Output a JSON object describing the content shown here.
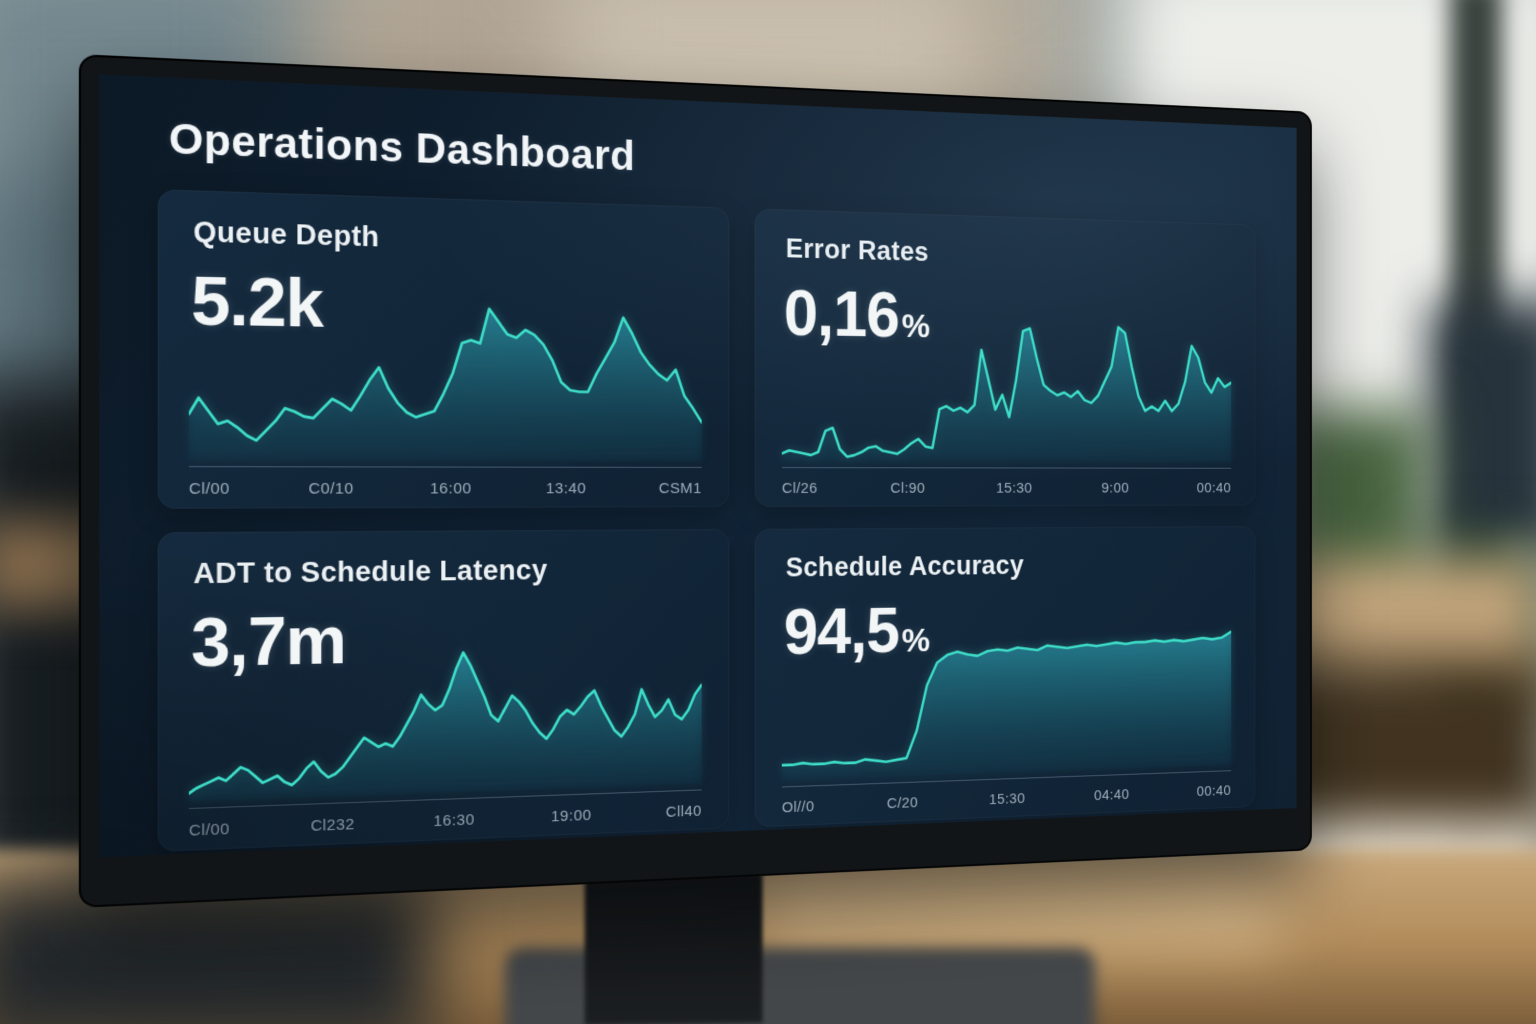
{
  "header": {
    "title": "Operations Dashboard"
  },
  "colors": {
    "line": "#3edec9",
    "area_top": "#2a93a8",
    "area_bottom": "#0e3a52",
    "screen_bg": "#102234",
    "card_bg": "#122639",
    "text_primary": "#f3f6f7",
    "text_axis": "#aebecb"
  },
  "chart_data": [
    {
      "type": "area",
      "title": "Queue Depth",
      "value": "5.2k",
      "value_suffix": "",
      "x_labels": [
        "Cl/00",
        "C0/10",
        "16:00",
        "13:40",
        "CSM1"
      ],
      "y_scale": "normalized-0-100-estimated",
      "ylim": [
        0,
        100
      ],
      "values": [
        28,
        38,
        30,
        22,
        24,
        20,
        15,
        12,
        18,
        24,
        32,
        30,
        27,
        26,
        32,
        38,
        35,
        31,
        40,
        50,
        58,
        45,
        36,
        30,
        27,
        29,
        31,
        42,
        55,
        74,
        76,
        74,
        96,
        88,
        80,
        78,
        83,
        80,
        74,
        64,
        50,
        45,
        44,
        44,
        56,
        66,
        76,
        92,
        82,
        70,
        62,
        56,
        52,
        59,
        42,
        34,
        25
      ]
    },
    {
      "type": "area",
      "title": "Error Rates",
      "value": "0,16",
      "value_suffix": "%",
      "x_labels": [
        "Cl/26",
        "Cl:90",
        "15:30",
        "9:00",
        "00:40"
      ],
      "y_scale": "normalized-0-100-estimated",
      "ylim": [
        0,
        100
      ],
      "values": [
        5,
        7,
        6,
        5,
        4,
        6,
        20,
        22,
        8,
        3,
        4,
        6,
        9,
        10,
        7,
        6,
        5,
        8,
        12,
        15,
        10,
        9,
        35,
        37,
        34,
        36,
        33,
        38,
        75,
        55,
        35,
        45,
        30,
        55,
        88,
        90,
        70,
        52,
        48,
        45,
        47,
        44,
        48,
        42,
        40,
        45,
        55,
        65,
        92,
        88,
        65,
        45,
        35,
        38,
        35,
        42,
        35,
        40,
        55,
        80,
        72,
        55,
        48,
        58,
        52,
        55
      ]
    },
    {
      "type": "area",
      "title": "ADT to Schedule Latency",
      "value": "3,7m",
      "value_suffix": "",
      "x_labels": [
        "Cl/00",
        "Cl232",
        "16:30",
        "19:00",
        "Cll40"
      ],
      "y_scale": "normalized-0-100-estimated",
      "ylim": [
        0,
        100
      ],
      "values": [
        5,
        8,
        10,
        12,
        14,
        12,
        16,
        20,
        18,
        14,
        10,
        12,
        14,
        10,
        8,
        12,
        18,
        22,
        16,
        12,
        14,
        18,
        24,
        30,
        36,
        33,
        30,
        32,
        30,
        36,
        44,
        52,
        62,
        56,
        52,
        55,
        65,
        78,
        88,
        80,
        70,
        60,
        48,
        44,
        52,
        60,
        56,
        50,
        42,
        36,
        32,
        38,
        46,
        50,
        47,
        52,
        58,
        62,
        52,
        44,
        36,
        32,
        38,
        46,
        62,
        52,
        44,
        48,
        55,
        45,
        42,
        48,
        58,
        64
      ]
    },
    {
      "type": "area",
      "title": "Schedule Accuracy",
      "value": "94,5",
      "value_suffix": "%",
      "x_labels": [
        "Ol//0",
        "C/20",
        "15:30",
        "04:40",
        "00:40"
      ],
      "y_scale": "normalized-0-100-estimated",
      "ylim": [
        0,
        100
      ],
      "values": [
        10,
        10,
        11,
        10,
        10,
        11,
        10,
        10,
        12,
        11,
        10,
        11,
        12,
        30,
        60,
        75,
        80,
        82,
        80,
        79,
        82,
        83,
        82,
        84,
        83,
        82,
        85,
        84,
        83,
        84,
        85,
        84,
        85,
        86,
        85,
        86,
        86,
        87,
        86,
        87,
        86,
        87,
        88,
        87,
        88,
        92
      ]
    }
  ]
}
